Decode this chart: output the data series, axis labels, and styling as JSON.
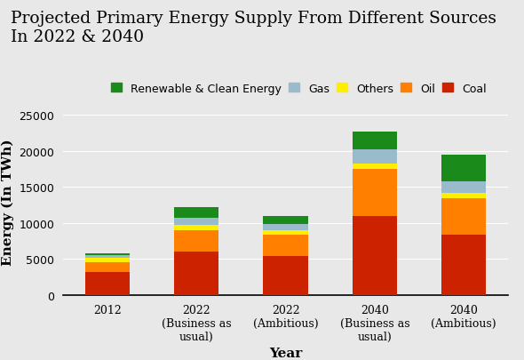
{
  "categories": [
    "2012",
    "2022\n(Business as\nusual)",
    "2022\n(Ambitious)",
    "2040\n(Business as\nusual)",
    "2040\n(Ambitious)"
  ],
  "series": {
    "Coal": [
      3200,
      6000,
      5400,
      11000,
      8400
    ],
    "Oil": [
      1300,
      3000,
      3000,
      6500,
      5000
    ],
    "Others": [
      700,
      700,
      600,
      700,
      700
    ],
    "Gas": [
      300,
      1000,
      800,
      2000,
      1700
    ],
    "Renewable & Clean Energy": [
      300,
      1500,
      1200,
      2400,
      3700
    ]
  },
  "colors": {
    "Coal": "#cc2200",
    "Oil": "#ff8000",
    "Others": "#ffee00",
    "Gas": "#99bbcc",
    "Renewable & Clean Energy": "#1a8a1a"
  },
  "legend_order": [
    "Renewable & Clean Energy",
    "Gas",
    "Others",
    "Oil",
    "Coal"
  ],
  "title_line1": "Projected Primary Energy Supply From Different Sources",
  "title_line2": "In 2022 & 2040",
  "xlabel": "Year",
  "ylabel": "Energy (In TWh)",
  "ylim": [
    0,
    26000
  ],
  "yticks": [
    0,
    5000,
    10000,
    15000,
    20000,
    25000
  ],
  "background_color": "#e8e8e8",
  "title_fontsize": 13.5,
  "axis_label_fontsize": 11,
  "tick_fontsize": 9,
  "legend_fontsize": 9,
  "bar_width": 0.5
}
